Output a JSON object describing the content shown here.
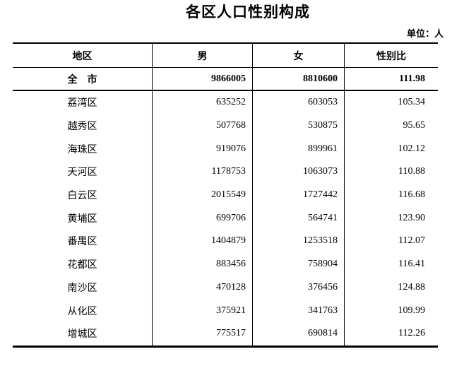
{
  "title": "各区人口性别构成",
  "unit_label": "单位：人",
  "table": {
    "headers": [
      "地区",
      "男",
      "女",
      "性别比"
    ],
    "total": {
      "region": "全　市",
      "male": "9866005",
      "female": "8810600",
      "ratio": "111.98"
    },
    "rows": [
      {
        "region": "荔湾区",
        "male": "635252",
        "female": "603053",
        "ratio": "105.34"
      },
      {
        "region": "越秀区",
        "male": "507768",
        "female": "530875",
        "ratio": "95.65"
      },
      {
        "region": "海珠区",
        "male": "919076",
        "female": "899961",
        "ratio": "102.12"
      },
      {
        "region": "天河区",
        "male": "1178753",
        "female": "1063073",
        "ratio": "110.88"
      },
      {
        "region": "白云区",
        "male": "2015549",
        "female": "1727442",
        "ratio": "116.68"
      },
      {
        "region": "黄埔区",
        "male": "699706",
        "female": "564741",
        "ratio": "123.90"
      },
      {
        "region": "番禺区",
        "male": "1404879",
        "female": "1253518",
        "ratio": "112.07"
      },
      {
        "region": "花都区",
        "male": "883456",
        "female": "758904",
        "ratio": "116.41"
      },
      {
        "region": "南沙区",
        "male": "470128",
        "female": "376456",
        "ratio": "124.88"
      },
      {
        "region": "从化区",
        "male": "375921",
        "female": "341763",
        "ratio": "109.99"
      },
      {
        "region": "增城区",
        "male": "775517",
        "female": "690814",
        "ratio": "112.26"
      }
    ]
  },
  "chart_data": {
    "type": "table",
    "title": "各区人口性别构成",
    "unit": "单位：人",
    "columns": [
      "地区",
      "男",
      "女",
      "性别比"
    ],
    "rows": [
      [
        "全市",
        9866005,
        8810600,
        111.98
      ],
      [
        "荔湾区",
        635252,
        603053,
        105.34
      ],
      [
        "越秀区",
        507768,
        530875,
        95.65
      ],
      [
        "海珠区",
        919076,
        899961,
        102.12
      ],
      [
        "天河区",
        1178753,
        1063073,
        110.88
      ],
      [
        "白云区",
        2015549,
        1727442,
        116.68
      ],
      [
        "黄埔区",
        699706,
        564741,
        123.9
      ],
      [
        "番禺区",
        1404879,
        1253518,
        112.07
      ],
      [
        "花都区",
        883456,
        758904,
        116.41
      ],
      [
        "南沙区",
        470128,
        376456,
        124.88
      ],
      [
        "从化区",
        375921,
        341763,
        109.99
      ],
      [
        "增城区",
        775517,
        690814,
        112.26
      ]
    ]
  }
}
